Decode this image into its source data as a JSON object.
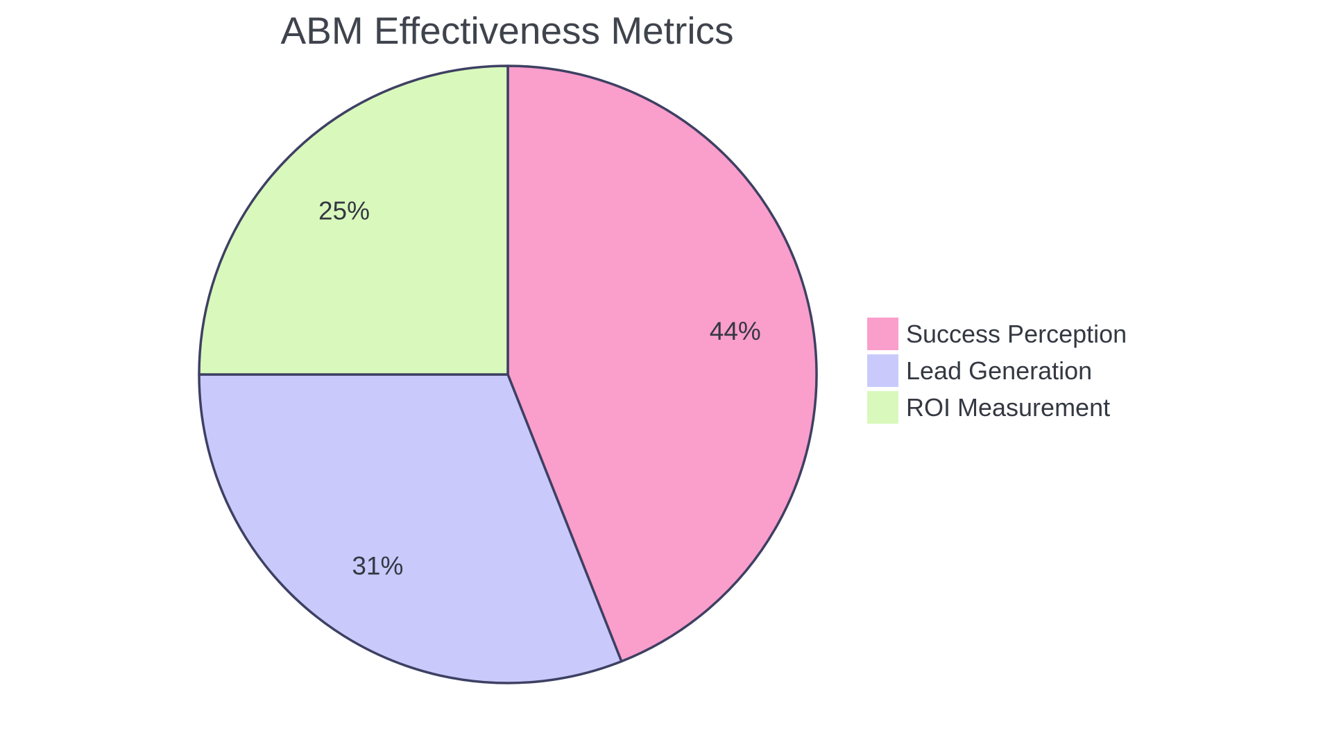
{
  "page": {
    "background": "#FFFFFF"
  },
  "chart_data": {
    "type": "pie",
    "title": "ABM Effectiveness Metrics",
    "categories": [
      "Success Perception",
      "Lead Generation",
      "ROI Measurement"
    ],
    "values": [
      44,
      31,
      25
    ],
    "value_labels": [
      "44%",
      "31%",
      "25%"
    ],
    "slice_colors": [
      "#FA9ECB",
      "#C9CAFB",
      "#D9F8BC"
    ],
    "slice_border_color": "#3E4063",
    "label_color": "#343842",
    "title_color": "#3F434C",
    "start_angle": "12-oclock",
    "direction": "clockwise",
    "labels_position": "inside",
    "legend_position": "right-middle"
  }
}
